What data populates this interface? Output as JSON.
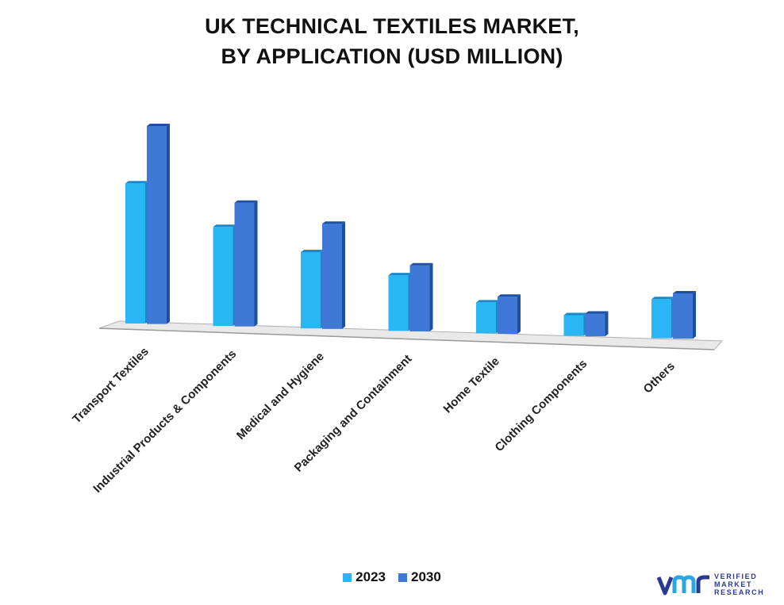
{
  "title": {
    "line1": "UK TECHNICAL TEXTILES MARKET,",
    "line2": "BY APPLICATION (USD MILLION)"
  },
  "colors": {
    "series_2023_front": "#2ab6f5",
    "series_2023_side": "#1a88c9",
    "series_2030_front": "#3f78d6",
    "series_2030_side": "#1f4f9f",
    "floor": "#e9e9e9",
    "floor_edge": "#b0b0b0"
  },
  "chart_data": {
    "type": "bar",
    "title": "UK TECHNICAL TEXTILES MARKET, BY APPLICATION (USD MILLION)",
    "xlabel": "",
    "ylabel": "",
    "ylim": [
      0,
      100
    ],
    "grid": false,
    "legend_position": "bottom",
    "categories": [
      "Transport Textiles",
      "Industrial Products & Components",
      "Medical and Hygiene",
      "Packaging and Containment",
      "Home Textile",
      "Clothing Components",
      "Others"
    ],
    "series": [
      {
        "name": "2023",
        "values": [
          68,
          48,
          37,
          27,
          15,
          10,
          19
        ]
      },
      {
        "name": "2030",
        "values": [
          96,
          60,
          51,
          32,
          18,
          11,
          22
        ]
      }
    ]
  },
  "legend": {
    "items": [
      {
        "label": "2023"
      },
      {
        "label": "2030"
      }
    ]
  },
  "logo": {
    "line1": "VERIFIED",
    "line2": "MARKET",
    "line3": "RESEARCH"
  }
}
